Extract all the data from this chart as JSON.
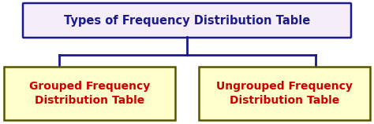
{
  "title": "Types of Frequency Distribution Table",
  "left_label": "Grouped Frequency\nDistribution Table",
  "right_label": "Ungrouped Frequency\nDistribution Table",
  "title_bg": "#f5eef8",
  "title_border": "#1a1a8c",
  "child_bg": "#ffffcc",
  "child_border": "#555500",
  "title_text_color": "#1a1a8c",
  "child_text_color": "#cc0000",
  "line_color": "#1a1a8c",
  "bg_color": "#ffffff",
  "title_fontsize": 10.5,
  "child_fontsize": 10.0
}
